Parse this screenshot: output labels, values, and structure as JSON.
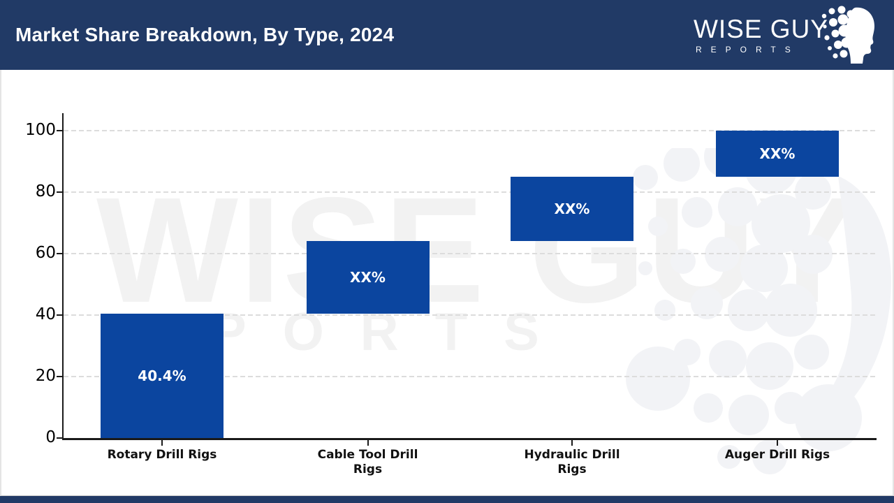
{
  "header": {
    "title": "Market Share Breakdown, By Type, 2024",
    "logo": {
      "line1": "WISE GUY",
      "line2": "REPORTS"
    }
  },
  "watermark": {
    "line1": "WISE GUY",
    "line2": "PORTS"
  },
  "chart_data": {
    "type": "bar",
    "variant": "waterfall",
    "title": "Market Share Breakdown, By Type, 2024",
    "categories": [
      "Rotary Drill Rigs",
      "Cable Tool Drill Rigs",
      "Hydraulic Drill Rigs",
      "Auger Drill Rigs"
    ],
    "categories_wrapped": [
      [
        "Rotary Drill Rigs"
      ],
      [
        "Cable Tool Drill",
        "Rigs"
      ],
      [
        "Hydraulic Drill",
        "Rigs"
      ],
      [
        "Auger Drill Rigs"
      ]
    ],
    "segments": [
      {
        "category": "Rotary Drill Rigs",
        "start": 0,
        "end": 40.4,
        "label": "40.4%"
      },
      {
        "category": "Cable Tool Drill Rigs",
        "start": 40.4,
        "end": 64.1,
        "label": "XX%"
      },
      {
        "category": "Hydraulic Drill Rigs",
        "start": 64.1,
        "end": 84.9,
        "label": "XX%"
      },
      {
        "category": "Auger Drill Rigs",
        "start": 84.9,
        "end": 100,
        "label": "XX%"
      }
    ],
    "yticks": [
      0,
      20,
      40,
      60,
      80,
      100
    ],
    "ylim": [
      0,
      106
    ],
    "xlabel": "",
    "ylabel": "",
    "grid": "horizontal-dashed",
    "legend": "none",
    "bar_color": "#0b459f",
    "label_color": "#ffffff"
  },
  "colors": {
    "header_bg": "#213a66",
    "footer_bg": "#213a66",
    "bar": "#0b459f",
    "grid": "#dcdcdc",
    "axis": "#1a1a1a",
    "watermark": "#f2f2f2"
  }
}
